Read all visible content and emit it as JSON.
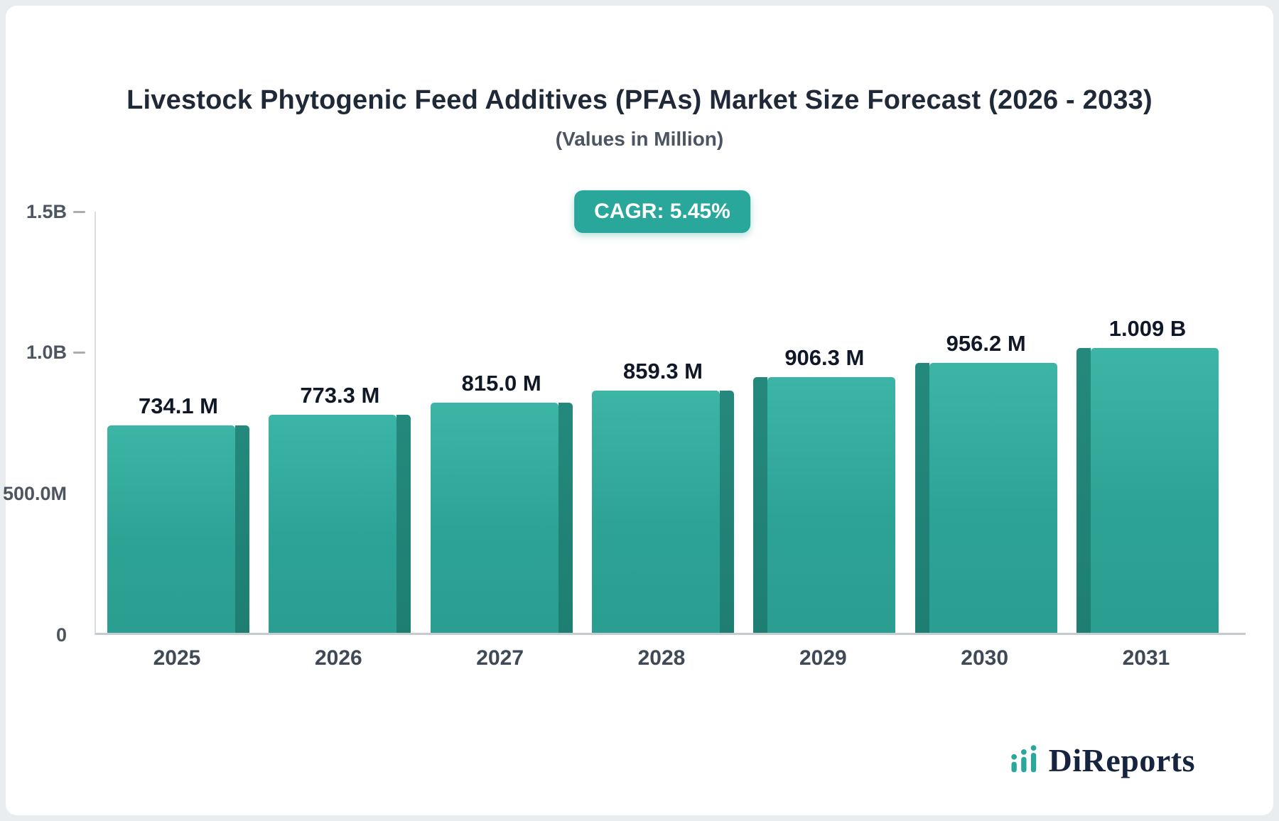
{
  "page": {
    "title": "Livestock Phytogenic Feed Additives (PFAs) Market Size Forecast (2026 - 2033)",
    "subtitle": "(Values in Million)",
    "cagr_label": "CAGR: 5.45%"
  },
  "colors": {
    "bar_fill": "#2da396",
    "bar_shade": "#1e7e72",
    "badge_background": "#2aa79b",
    "logo_text": "#16243f"
  },
  "chart_data": {
    "type": "bar",
    "title": "Livestock Phytogenic Feed Additives (PFAs) Market Size Forecast (2026 - 2033)",
    "subtitle": "(Values in Million)",
    "categories": [
      "2025",
      "2026",
      "2027",
      "2028",
      "2029",
      "2030",
      "2031"
    ],
    "values_million": [
      734.1,
      773.3,
      815.0,
      859.3,
      906.3,
      956.2,
      1009
    ],
    "value_labels": [
      "734.1 M",
      "773.3 M",
      "815.0 M",
      "859.3 M",
      "906.3 M",
      "956.2 M",
      "1.009 B"
    ],
    "shade_side": [
      "right",
      "right",
      "right",
      "right",
      "left",
      "left",
      "left"
    ],
    "annotation": "CAGR: 5.45%",
    "xlabel": "",
    "ylabel": "",
    "ylim": [
      0,
      1500
    ],
    "y_ticks": [
      {
        "label": "1.5B",
        "value": 1500,
        "dash": true
      },
      {
        "label": "1.0B",
        "value": 1000,
        "dash": true
      },
      {
        "label": "500.0M",
        "value": 500,
        "dash": false
      },
      {
        "label": "0",
        "value": 0,
        "dash": false
      }
    ],
    "grid": false,
    "legend": "none"
  },
  "logo": {
    "text": "DiReports",
    "icon": "bar-chart-icon"
  }
}
